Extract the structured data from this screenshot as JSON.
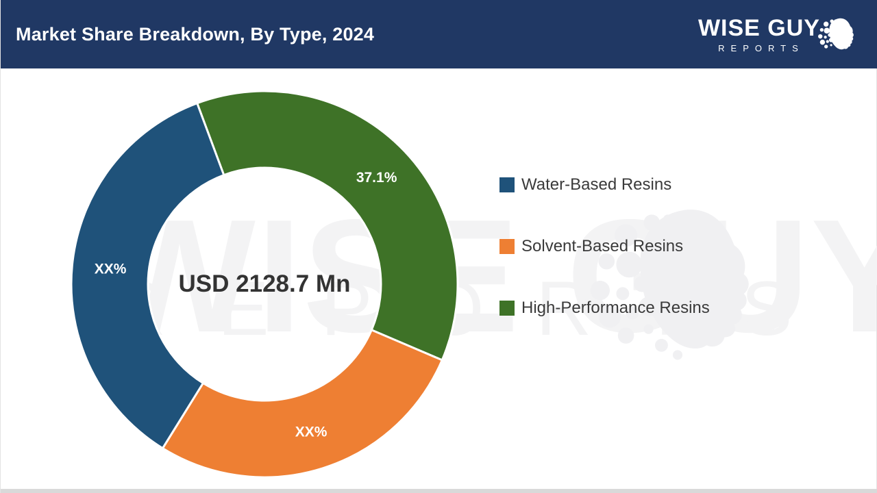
{
  "header": {
    "title": "Market Share Breakdown, By Type, 2024",
    "bg_color": "#203864",
    "logo": {
      "line1": "WISE GUY",
      "line2": "REPORTS"
    }
  },
  "chart_data": {
    "type": "pie",
    "subtype": "donut",
    "title": "Market Share Breakdown, By Type, 2024",
    "center_label": "USD 2128.7 Mn",
    "start_angle_deg": -20.4,
    "segments": [
      {
        "category": "High-Performance Resins",
        "display_label": "37.1%",
        "percent": 37.1,
        "color": "#3E7227"
      },
      {
        "category": "Solvent-Based Resins",
        "display_label": "XX%",
        "percent": 27.4,
        "color": "#EE7F33"
      },
      {
        "category": "Water-Based Resins",
        "display_label": "XX%",
        "percent": 35.5,
        "color": "#1F527A"
      }
    ],
    "legend_position": "right"
  },
  "legend": {
    "items": [
      {
        "label": "Water-Based Resins",
        "color": "#1F527A"
      },
      {
        "label": "Solvent-Based Resins",
        "color": "#EE7F33"
      },
      {
        "label": "High-Performance Resins",
        "color": "#3E7227"
      }
    ]
  },
  "watermark": {
    "line1": "WISE GUY",
    "line2": "REPORTS"
  },
  "colors": {
    "header_bg": "#203864",
    "watermark": "#f3f3f4",
    "footer_strip": "#d9d9d9",
    "center_text": "#333333"
  }
}
